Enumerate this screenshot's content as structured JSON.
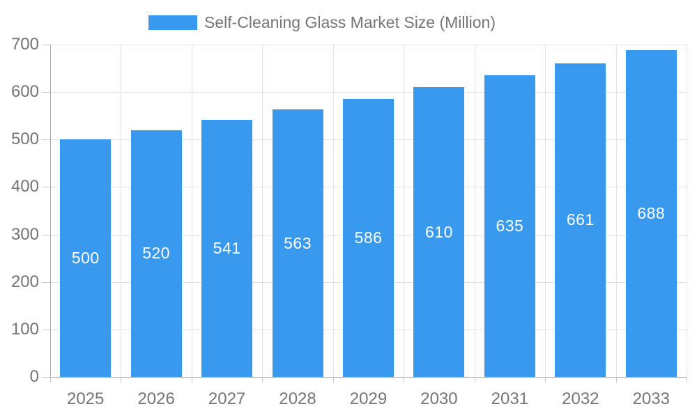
{
  "legend": {
    "label": "Self-Cleaning Glass Market Size (Million)"
  },
  "chart_data": {
    "type": "bar",
    "title": "Self-Cleaning Glass Market Size (Million)",
    "categories": [
      "2025",
      "2026",
      "2027",
      "2028",
      "2029",
      "2030",
      "2031",
      "2032",
      "2033"
    ],
    "values": [
      500,
      520,
      541,
      563,
      586,
      610,
      635,
      661,
      688
    ],
    "xlabel": "",
    "ylabel": "",
    "ylim": [
      0,
      700
    ],
    "yticks": [
      0,
      100,
      200,
      300,
      400,
      500,
      600,
      700
    ],
    "grid": true,
    "legend_position": "top",
    "value_labels": "inside-center"
  },
  "colors": {
    "bar": "#3999EC",
    "value_label": "#FFFFFF",
    "grid": "#E2E2E2",
    "axis": "#A9A9A9",
    "tick": "#C9C9C9",
    "text": "#757575",
    "background": "#FFFFFF"
  }
}
